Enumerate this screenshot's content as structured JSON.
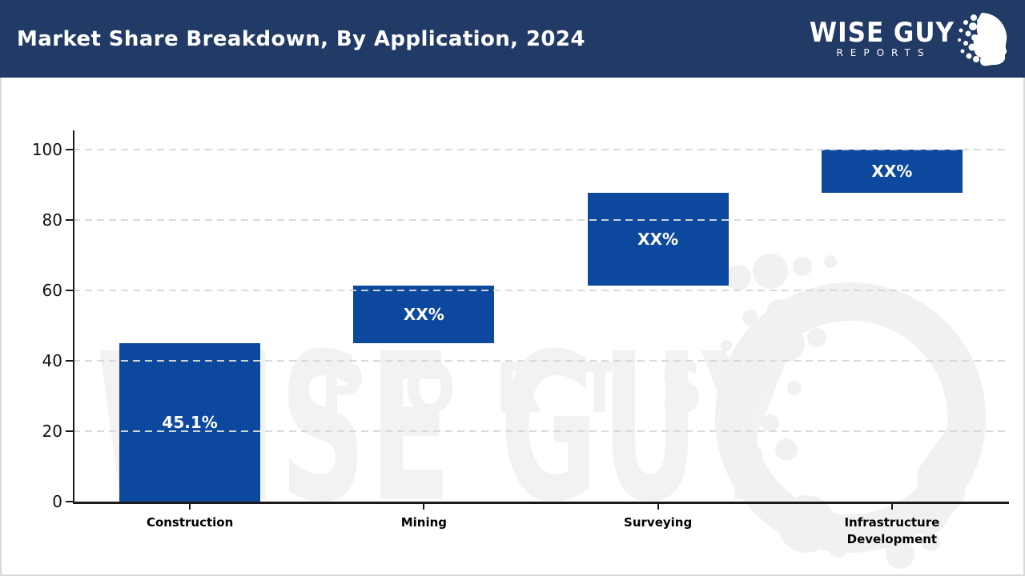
{
  "header": {
    "title": "Market Share Breakdown, By Application, 2024"
  },
  "brand": {
    "name_line1": "WISE GUY",
    "name_line2": "REPORTS",
    "face_icon": "dotted-head-profile"
  },
  "watermark": {
    "line1": "WISE GUY",
    "line2": "PORTS"
  },
  "colors": {
    "header_bg": "#213a66",
    "bar": "#0c489e",
    "bar_label": "#ffffff",
    "watermark": "#f2f2f2",
    "gridline": "#d8d8d8",
    "axis": "#1a1a1a"
  },
  "chart_data": {
    "type": "bar",
    "subtype": "waterfall-stacked-to-100",
    "title": "Market Share Breakdown, By Application, 2024",
    "categories": [
      "Construction",
      "Mining",
      "Surveying",
      "Infrastructure Development"
    ],
    "segments": [
      {
        "category": "Construction",
        "start": 0,
        "end": 45.1,
        "label": "45.1%"
      },
      {
        "category": "Mining",
        "start": 45.1,
        "end": 61.4,
        "label": "XX%"
      },
      {
        "category": "Surveying",
        "start": 61.4,
        "end": 87.8,
        "label": "XX%"
      },
      {
        "category": "Infrastructure Development",
        "start": 87.8,
        "end": 100,
        "label": "XX%"
      }
    ],
    "xlabel": "",
    "ylabel": "",
    "ylim": [
      0,
      100
    ],
    "yticks": [
      0,
      20,
      40,
      60,
      80,
      100
    ],
    "grid": "horizontal-dashed",
    "legend": "none",
    "bar_color": "#0c489e",
    "value_label_color": "#ffffff"
  }
}
